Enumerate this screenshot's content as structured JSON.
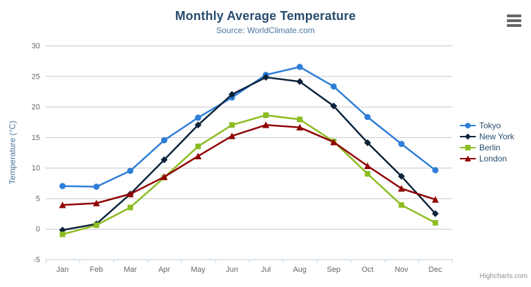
{
  "header": {
    "title": "Monthly Average Temperature",
    "subtitle": "Source: WorldClimate.com"
  },
  "icons": {
    "context_menu": "hamburger"
  },
  "credits": "Highcharts.com",
  "colors": {
    "title": "#274b6d",
    "subtitle": "#4d759e",
    "axis_title": "#4d759e",
    "axis_labels": "#666666",
    "grid_line": "#C8C8C8",
    "x_axis_line": "#C0D0E0",
    "tick": "#C0D0E0",
    "legend_text": "#274b6d",
    "credits_text": "#909090",
    "menu_icon": "#666666",
    "background": "#ffffff"
  },
  "chart_data": {
    "type": "line",
    "title": "Monthly Average Temperature",
    "subtitle": "Source: WorldClimate.com",
    "xlabel": "",
    "ylabel": "Temperature (°C)",
    "categories": [
      "Jan",
      "Feb",
      "Mar",
      "Apr",
      "May",
      "Jun",
      "Jul",
      "Aug",
      "Sep",
      "Oct",
      "Nov",
      "Dec"
    ],
    "yticks": [
      -5,
      0,
      5,
      10,
      15,
      20,
      25,
      30
    ],
    "ylim": [
      -5,
      30
    ],
    "grid": true,
    "legend_position": "right",
    "line_width": 2.5,
    "series": [
      {
        "name": "Tokyo",
        "color": "#2f7ed8",
        "marker": "circle",
        "values": [
          7.0,
          6.9,
          9.5,
          14.5,
          18.2,
          21.5,
          25.2,
          26.5,
          23.3,
          18.3,
          13.9,
          9.6
        ]
      },
      {
        "name": "New York",
        "color": "#0d233a",
        "marker": "diamond",
        "values": [
          -0.2,
          0.8,
          5.7,
          11.3,
          17.0,
          22.0,
          24.8,
          24.1,
          20.1,
          14.1,
          8.6,
          2.5
        ]
      },
      {
        "name": "Berlin",
        "color": "#8bbc21",
        "marker": "square",
        "values": [
          -0.9,
          0.6,
          3.5,
          8.4,
          13.5,
          17.0,
          18.6,
          17.9,
          14.3,
          9.0,
          3.9,
          1.0
        ]
      },
      {
        "name": "London",
        "color": "#910000",
        "marker": "triangle",
        "values": [
          3.9,
          4.2,
          5.7,
          8.5,
          11.9,
          15.2,
          17.0,
          16.6,
          14.2,
          10.3,
          6.6,
          4.8
        ]
      }
    ]
  }
}
